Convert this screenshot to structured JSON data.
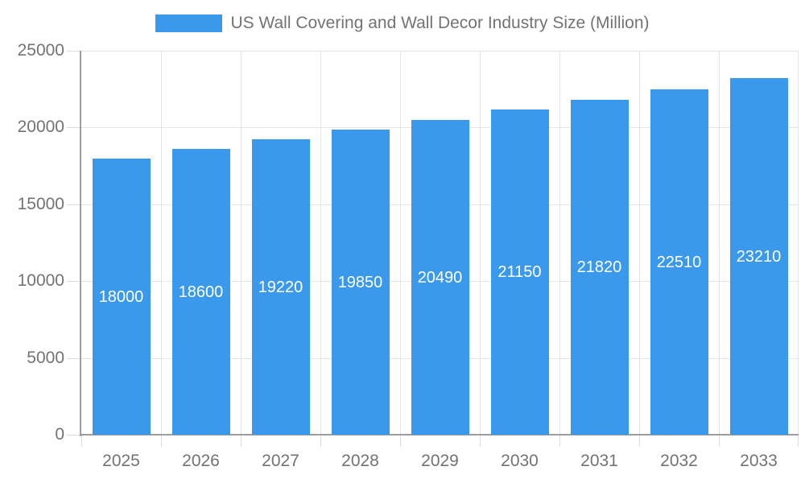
{
  "chart_data": {
    "type": "bar",
    "title": "US Wall Covering and Wall Decor Industry Size (Million)",
    "categories": [
      "2025",
      "2026",
      "2027",
      "2028",
      "2029",
      "2030",
      "2031",
      "2032",
      "2033"
    ],
    "values": [
      18000,
      18600,
      19220,
      19850,
      20490,
      21150,
      21820,
      22510,
      23210
    ],
    "series_name": "US Wall Covering and Wall Decor Industry Size (Million)",
    "xlabel": "",
    "ylabel": "",
    "ylim": [
      0,
      25000
    ],
    "yticks": [
      0,
      5000,
      10000,
      15000,
      20000,
      25000
    ],
    "grid": true,
    "legend_position": "top-center",
    "bar_label_position": "inside-center"
  },
  "colors": {
    "bar": "#3B99EC",
    "bar_value_text": "#FFFFFF",
    "axis_text": "#737373",
    "legend_text": "#737373",
    "gridline": "#E5E5E5",
    "tick": "#DCDCDC",
    "axis_line": "#9E9E9E",
    "background": "#FFFFFF"
  }
}
